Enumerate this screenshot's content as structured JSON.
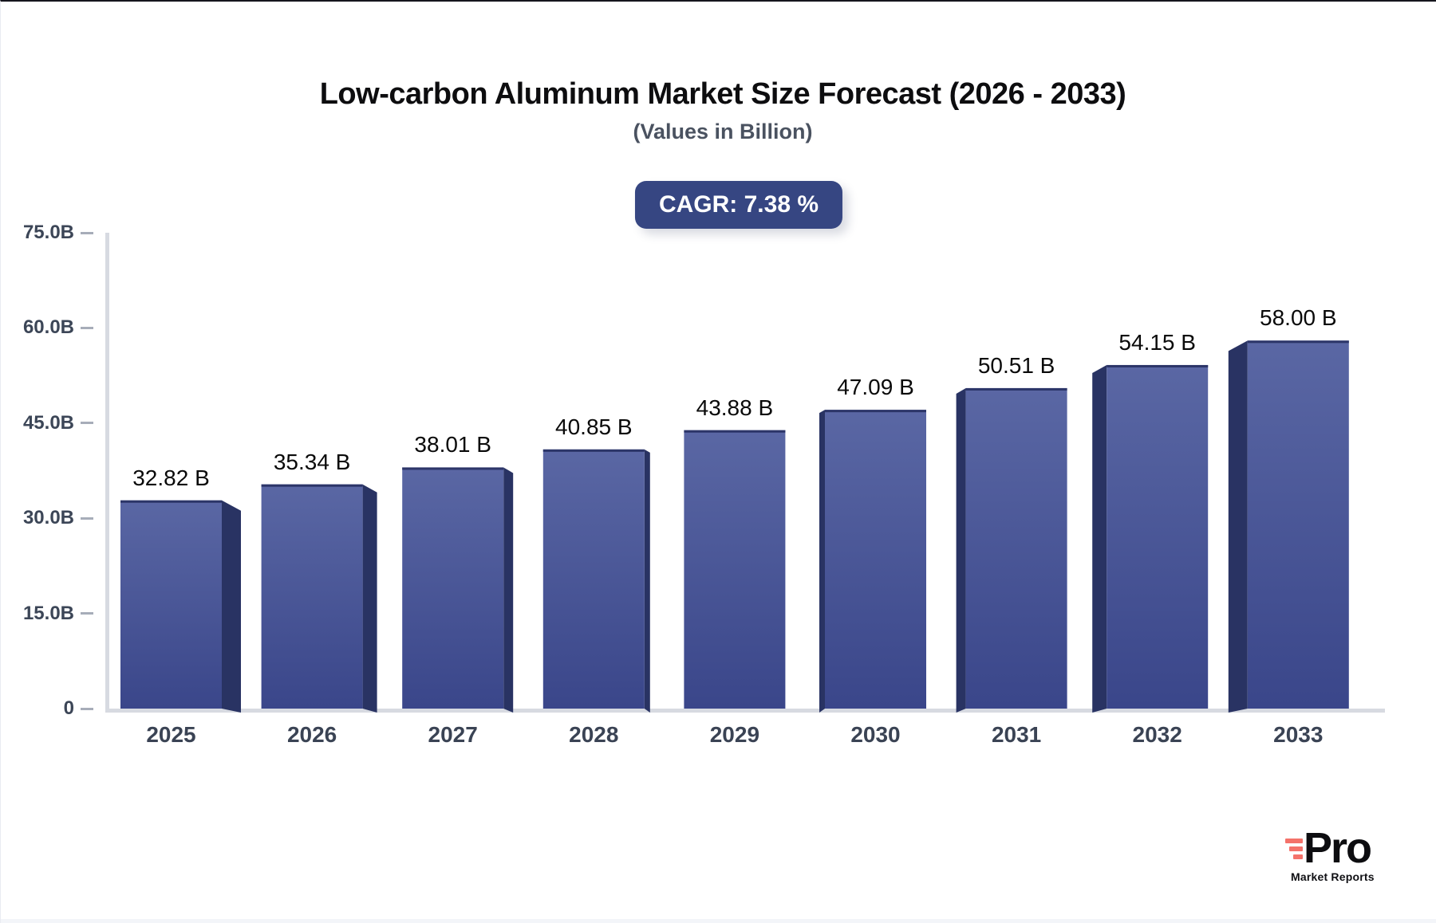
{
  "title": "Low-carbon Aluminum Market Size Forecast (2026 - 2033)",
  "subtitle": "(Values in Billion)",
  "badge": {
    "label": "CAGR: 7.38 %"
  },
  "chart_data": {
    "type": "bar",
    "title": "Low-carbon Aluminum Market Size Forecast (2026 - 2033)",
    "subtitle": "(Values in Billion)",
    "cagr": "7.38 %",
    "categories": [
      "2025",
      "2026",
      "2027",
      "2028",
      "2029",
      "2030",
      "2031",
      "2032",
      "2033"
    ],
    "values": [
      32.82,
      35.34,
      38.01,
      40.85,
      43.88,
      47.09,
      50.51,
      54.15,
      58.0
    ],
    "value_labels": [
      "32.82 B",
      "35.34 B",
      "38.01 B",
      "40.85 B",
      "43.88 B",
      "47.09 B",
      "50.51 B",
      "54.15 B",
      "58.00 B"
    ],
    "y_ticks": [
      {
        "label": "75.0B",
        "value": 75
      },
      {
        "label": "60.0B",
        "value": 60
      },
      {
        "label": "45.0B",
        "value": 45
      },
      {
        "label": "30.0B",
        "value": 30
      },
      {
        "label": "15.0B",
        "value": 15
      },
      {
        "label": "0",
        "value": 0
      }
    ],
    "ylim": [
      0,
      75
    ],
    "grid": false,
    "legend": "none",
    "colors": {
      "bar_top": "#5a67a4",
      "bar_bottom": "#3a468a",
      "bar_side": "#293363",
      "bar_top_edge": "#2c3568",
      "axis": "#d7dae1",
      "tick_dash": "#a7adb9",
      "tick_label": "#3c4657",
      "x_label": "#3a4354",
      "value_label": "#0a0a0a",
      "badge_bg": "#364682"
    }
  },
  "logo": {
    "name": "Pro",
    "subtext": "Market Reports",
    "flag_color": "#f4726a"
  }
}
